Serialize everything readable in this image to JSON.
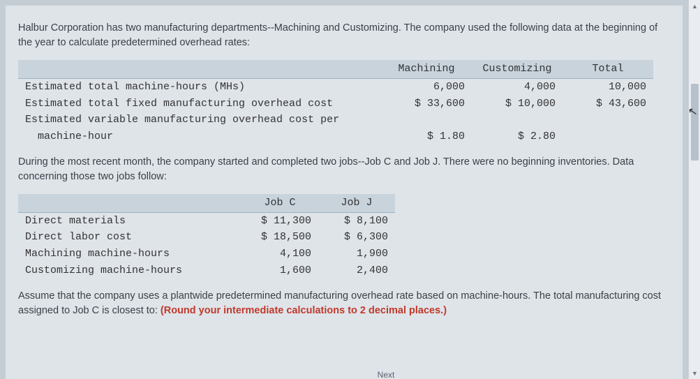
{
  "intro": "Halbur Corporation has two manufacturing departments--Machining and Customizing. The company used the following data at the beginning of the year to calculate predetermined overhead rates:",
  "table1": {
    "headers": {
      "c1": "Machining",
      "c2": "Customizing",
      "c3": "Total"
    },
    "rows": [
      {
        "label": "Estimated total machine-hours (MHs)",
        "c1": "6,000",
        "c2": "4,000",
        "c3": "10,000"
      },
      {
        "label": "Estimated total fixed manufacturing overhead cost",
        "c1": "$ 33,600",
        "c2": "$ 10,000",
        "c3": "$ 43,600"
      },
      {
        "label": "Estimated variable manufacturing overhead cost per",
        "c1": "",
        "c2": "",
        "c3": ""
      },
      {
        "label": "  machine-hour",
        "c1": "$ 1.80",
        "c2": "$ 2.80",
        "c3": ""
      }
    ]
  },
  "mid": "During the most recent month, the company started and completed two jobs--Job C and Job J. There were no beginning inventories. Data concerning those two jobs follow:",
  "table2": {
    "headers": {
      "c1": "Job C",
      "c2": "Job J"
    },
    "rows": [
      {
        "label": "Direct materials",
        "c1": "$ 11,300",
        "c2": "$ 8,100"
      },
      {
        "label": "Direct labor cost",
        "c1": "$ 18,500",
        "c2": "$ 6,300"
      },
      {
        "label": "Machining machine-hours",
        "c1": "4,100",
        "c2": "1,900"
      },
      {
        "label": "Customizing machine-hours",
        "c1": "1,600",
        "c2": "2,400"
      }
    ]
  },
  "question_a": "Assume that the company uses a plantwide predetermined manufacturing overhead rate based on machine-hours. The total manufacturing cost assigned to Job C is closest to: ",
  "question_b": "(Round your intermediate calculations to 2 decimal places.)",
  "footer": {
    "left": "",
    "right": "Next"
  },
  "colors": {
    "page_bg": "#dfe4e9",
    "outer_bg": "#c5cdd4",
    "header_row_bg": "#c8d3dc",
    "header_row_border": "#9fb0bf",
    "text": "#3a4048",
    "mono_text": "#333333",
    "emphasis": "#c0392b",
    "scrollbar_track": "#e9edf1",
    "scrollbar_thumb": "#b7c1cb"
  },
  "typography": {
    "body_font": "Arial",
    "body_size_pt": 11,
    "mono_font": "Courier New",
    "mono_size_pt": 11
  }
}
